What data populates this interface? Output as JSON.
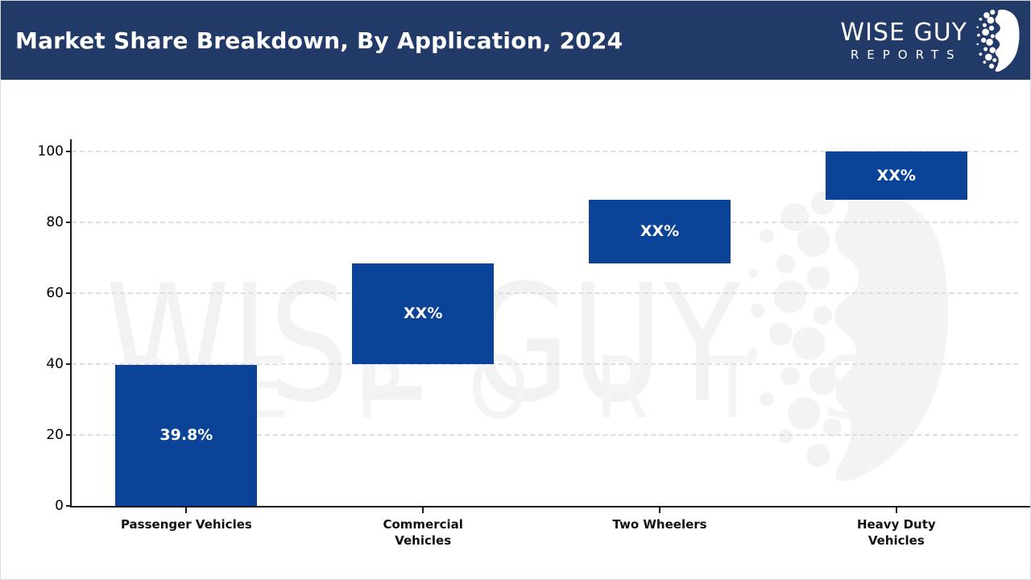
{
  "header": {
    "title": "Market Share Breakdown, By Application, 2024",
    "bg_color": "#223a68",
    "logo": {
      "line1": "WISE GUY",
      "line2": "REPORTS"
    }
  },
  "watermark": {
    "line1": "WISE GUY",
    "line2": "REPORTS"
  },
  "chart_data": {
    "type": "bar",
    "subtype": "waterfall",
    "title": "Market Share Breakdown, By Application, 2024",
    "xlabel": "",
    "ylabel": "",
    "ylim": [
      0,
      100
    ],
    "y_ticks": [
      0,
      20,
      40,
      60,
      80,
      100
    ],
    "grid": "horizontal-dashed",
    "legend": "none",
    "bar_color": "#0b4398",
    "label_color": "#ffffff",
    "axis_color": "#1a1a1a",
    "categories": [
      "Passenger Vehicles",
      "Commercial Vehicles",
      "Two Wheelers",
      "Heavy Duty Vehicles"
    ],
    "bars": [
      {
        "category": "Passenger Vehicles",
        "label_lines": [
          "Passenger Vehicles"
        ],
        "value_label": "39.8%",
        "start": 0,
        "end": 39.8
      },
      {
        "category": "Commercial Vehicles",
        "label_lines": [
          "Commercial",
          "Vehicles"
        ],
        "value_label": "XX%",
        "start": 40,
        "end": 68.5
      },
      {
        "category": "Two Wheelers",
        "label_lines": [
          "Two Wheelers"
        ],
        "value_label": "XX%",
        "start": 68.5,
        "end": 86.3
      },
      {
        "category": "Heavy Duty Vehicles",
        "label_lines": [
          "Heavy Duty",
          "Vehicles"
        ],
        "value_label": "XX%",
        "start": 86.3,
        "end": 100
      }
    ]
  }
}
